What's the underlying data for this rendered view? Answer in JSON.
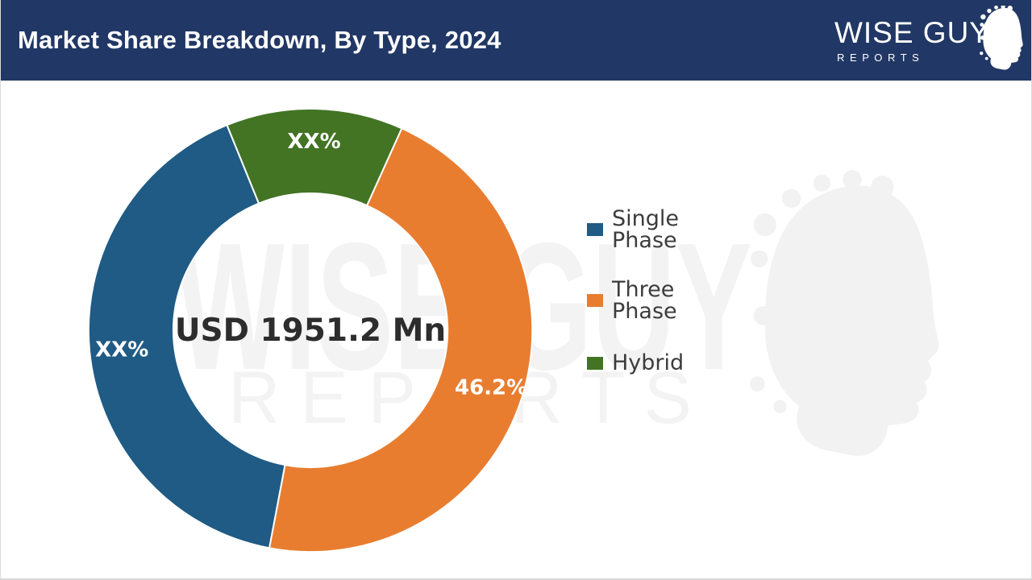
{
  "header": {
    "title": "Market Share Breakdown, By Type, 2024",
    "logo": {
      "line1": "WISE GUY",
      "line2": "R E P O R T S"
    }
  },
  "watermark": {
    "line1": "WISE GUY",
    "line2": "R E P O R T S"
  },
  "colors": {
    "header_bg": "#213765",
    "single_phase": "#1f5b84",
    "three_phase": "#e87d30",
    "hybrid": "#427424",
    "legend_text": "#3c3c3c",
    "center_text": "#2d2d2d",
    "watermark": "#f2f2f3",
    "border": "#d9d9d9"
  },
  "chart_data": {
    "type": "pie",
    "donut": true,
    "title": "Market Share Breakdown, By Type, 2024",
    "center_label": "USD 1951.2 Mn",
    "legend_position": "right",
    "start_angle_deg": 112.1,
    "direction": "counterclockwise",
    "series": [
      {
        "name": "Single Phase",
        "value": 40.9,
        "displayed_label": "XX%",
        "color": "#1f5b84"
      },
      {
        "name": "Three Phase",
        "value": 46.2,
        "displayed_label": "46.2%",
        "color": "#e87d30"
      },
      {
        "name": "Hybrid",
        "value": 12.9,
        "displayed_label": "XX%",
        "color": "#427424"
      }
    ]
  }
}
